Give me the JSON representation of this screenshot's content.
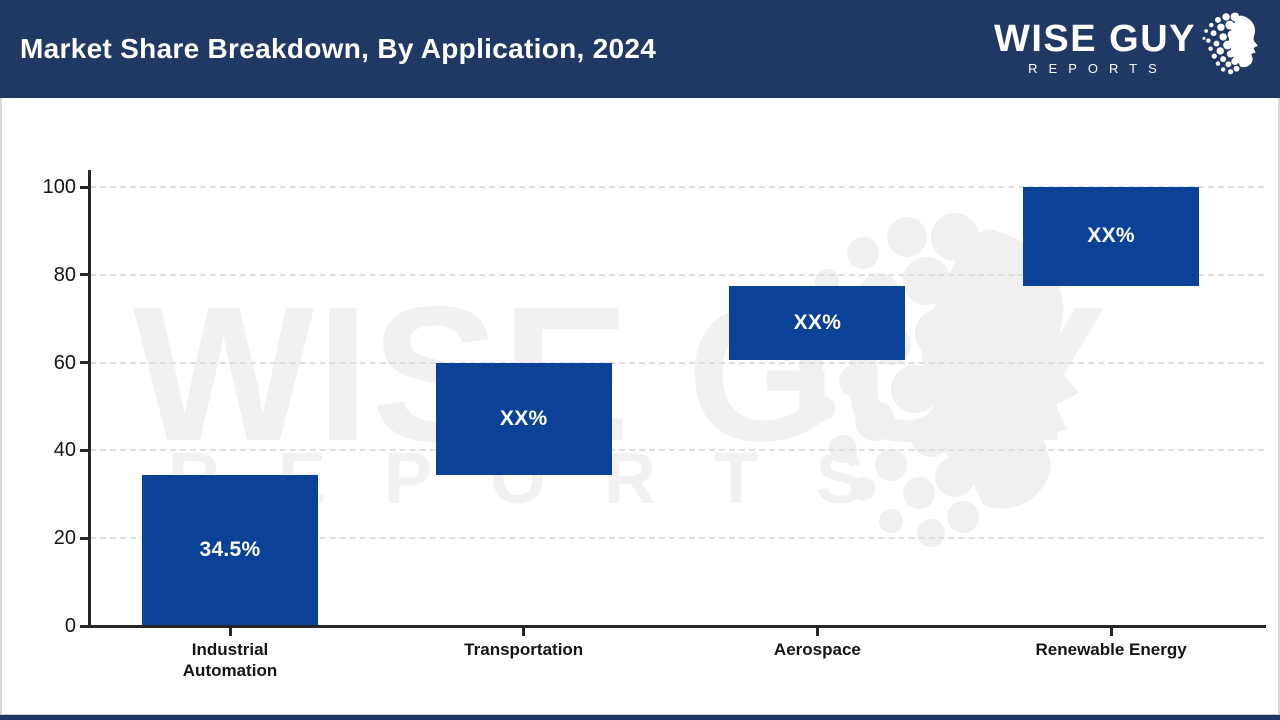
{
  "header": {
    "title": "Market Share Breakdown, By Application, 2024",
    "logo": {
      "primary": "WISE GUY",
      "secondary": "REPORTS"
    }
  },
  "watermark": {
    "primary": "WISE GUY",
    "secondary": "REPORTS"
  },
  "footer": {
    "note": ""
  },
  "colors": {
    "header_bg": "#1f3864",
    "bar_fill": "#0b4197",
    "bar_label": "#ffffff",
    "watermark": "#f1f1f1",
    "gridline": "#dedede",
    "axis": "#262626"
  },
  "chart_data": {
    "type": "bar",
    "subtype": "waterfall",
    "title": "Market Share Breakdown, By Application, 2024",
    "xlabel": "",
    "ylabel": "",
    "ylim": [
      0,
      100
    ],
    "yticks": [
      0,
      20,
      40,
      60,
      80,
      100
    ],
    "grid": "horizontal-dashed",
    "legend": "none",
    "categories": [
      "Industrial Automation",
      "Transportation",
      "Aerospace",
      "Renewable Energy"
    ],
    "segments": [
      {
        "category": "Industrial Automation",
        "category_lines": [
          "Industrial",
          "Automation"
        ],
        "start": 0,
        "end": 34.5,
        "label": "34.5%"
      },
      {
        "category": "Transportation",
        "category_lines": [
          "Transportation"
        ],
        "start": 34.5,
        "end": 60,
        "label": "XX%"
      },
      {
        "category": "Aerospace",
        "category_lines": [
          "Aerospace"
        ],
        "start": 60.5,
        "end": 77.5,
        "label": "XX%"
      },
      {
        "category": "Renewable Energy",
        "category_lines": [
          "Renewable Energy"
        ],
        "start": 77.5,
        "end": 100,
        "label": "XX%"
      }
    ]
  }
}
